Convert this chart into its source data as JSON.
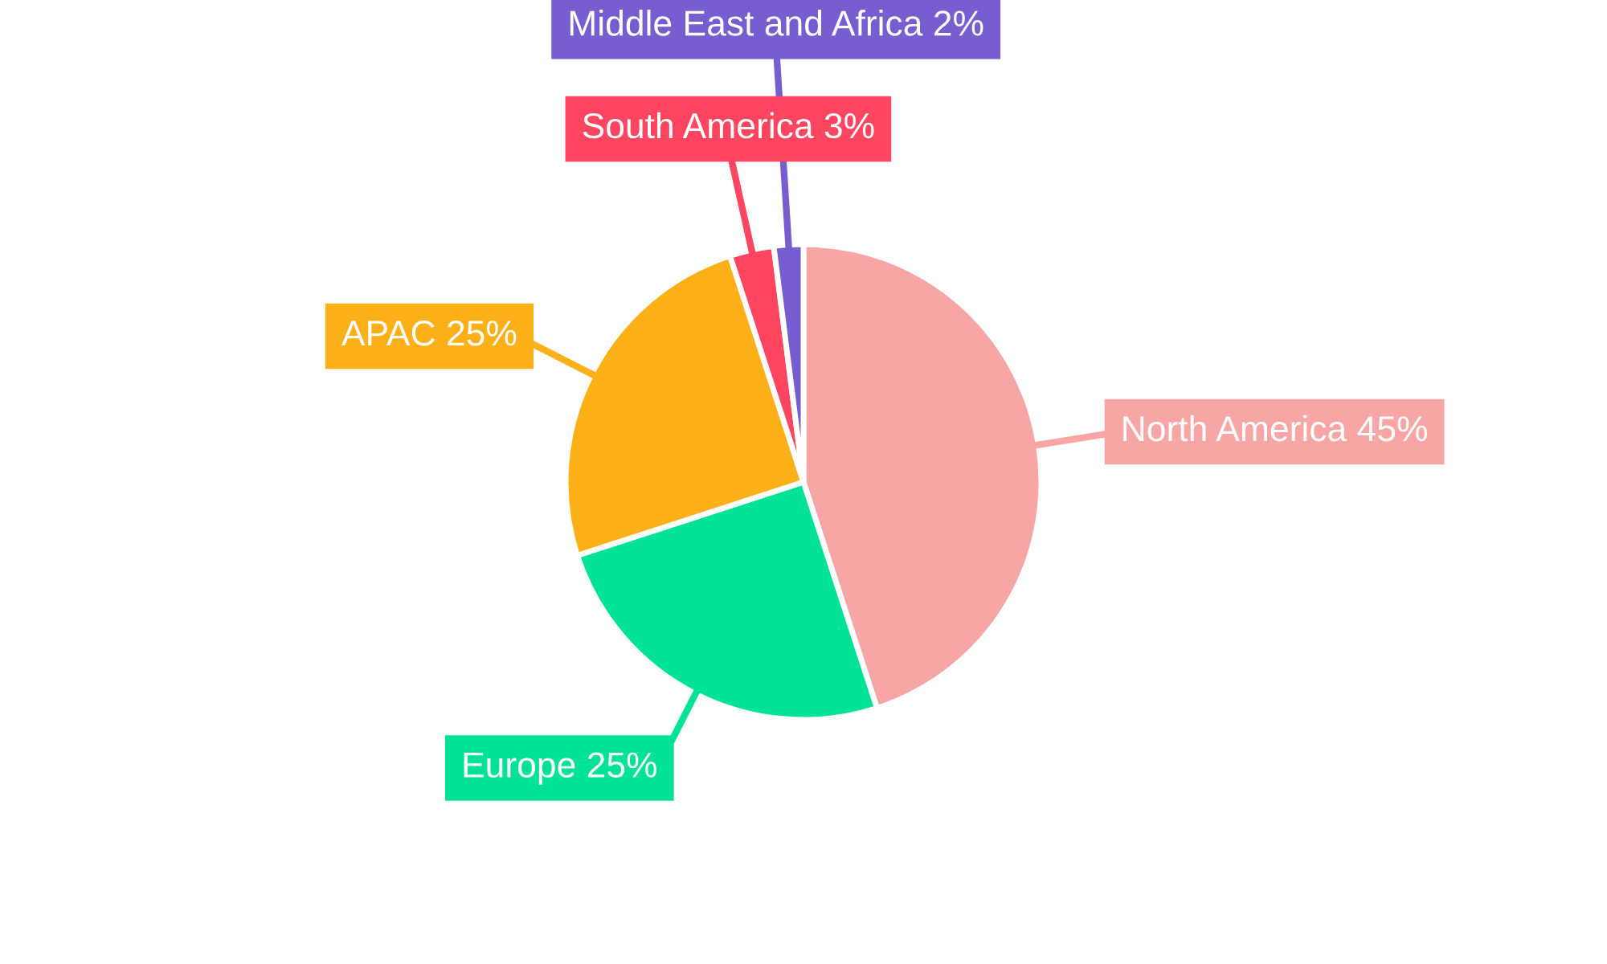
{
  "chart_data": {
    "type": "pie",
    "categories": [
      "North America",
      "Europe",
      "APAC",
      "South America",
      "Middle East and Africa"
    ],
    "values": [
      45,
      25,
      25,
      3,
      2
    ],
    "value_labels": [
      "45%",
      "25%",
      "25%",
      "3%",
      "2%"
    ],
    "colors": [
      "#f8a5a5",
      "#00e396",
      "#feb019",
      "#ff4560",
      "#775dd0"
    ],
    "legend": false
  }
}
